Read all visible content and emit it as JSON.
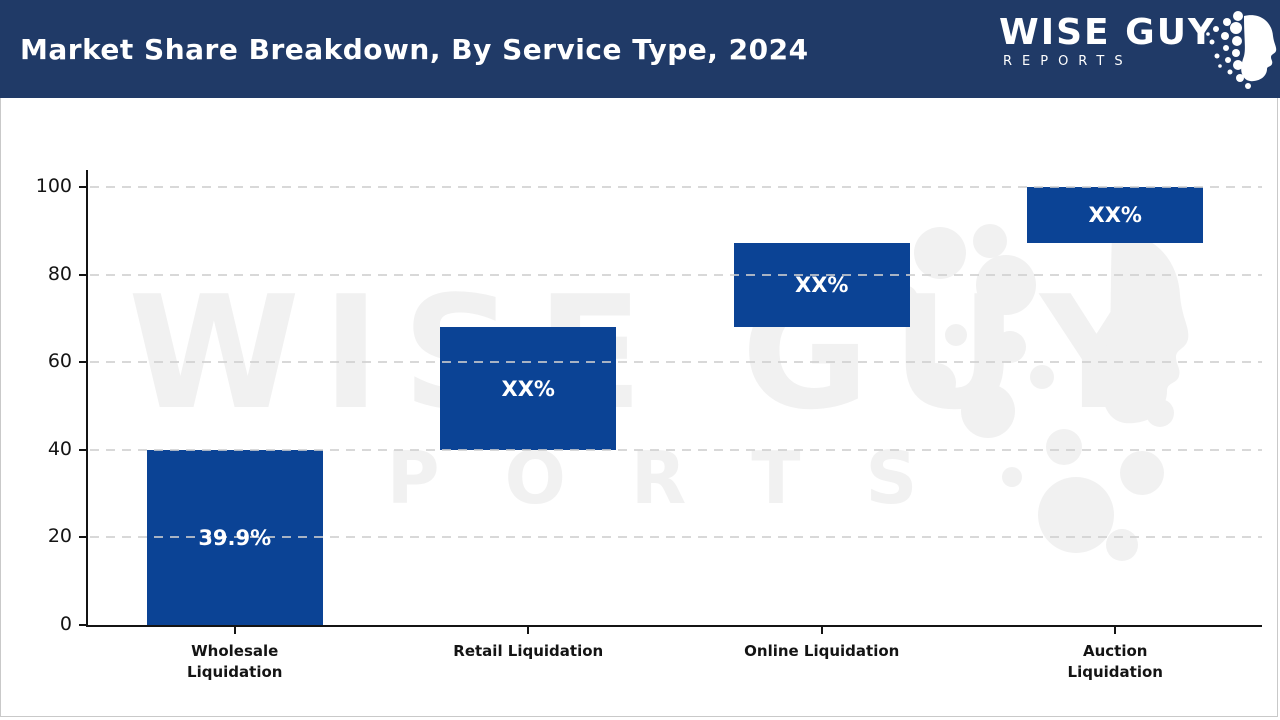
{
  "header": {
    "title": "Market Share Breakdown, By Service Type, 2024",
    "logo": {
      "line1": "WISE GUY",
      "line2": "REPORTS"
    }
  },
  "watermark": {
    "line1": "WISE GUY",
    "line2": "R E P O R T S"
  },
  "chart_data": {
    "type": "bar",
    "subtype": "waterfall-stacked-segments",
    "title": "Market Share Breakdown, By Service Type, 2024",
    "categories": [
      {
        "label": "Wholesale Liquidation",
        "lines": [
          "Wholesale",
          "Liquidation"
        ]
      },
      {
        "label": "Retail Liquidation",
        "lines": [
          "Retail Liquidation"
        ]
      },
      {
        "label": "Online Liquidation",
        "lines": [
          "Online Liquidation"
        ]
      },
      {
        "label": "Auction Liquidation",
        "lines": [
          "Auction",
          "Liquidation"
        ]
      }
    ],
    "segments": [
      {
        "category": "Wholesale Liquidation",
        "start": 0,
        "end": 39.9,
        "label": "39.9%"
      },
      {
        "category": "Retail Liquidation",
        "start": 39.9,
        "end": 68.0,
        "label": "XX%"
      },
      {
        "category": "Online Liquidation",
        "start": 68.0,
        "end": 87.3,
        "label": "XX%"
      },
      {
        "category": "Auction Liquidation",
        "start": 87.3,
        "end": 100,
        "label": "XX%"
      }
    ],
    "xlabel": "",
    "ylabel": "",
    "ylim": [
      0,
      100
    ],
    "yticks": [
      0,
      20,
      40,
      60,
      80,
      100
    ],
    "grid": "horizontal-dashed",
    "legend": "none",
    "bar_color": "#0b4395",
    "bar_label_color": "#ffffff",
    "axis_color": "#141414",
    "header_color": "#203a67"
  }
}
